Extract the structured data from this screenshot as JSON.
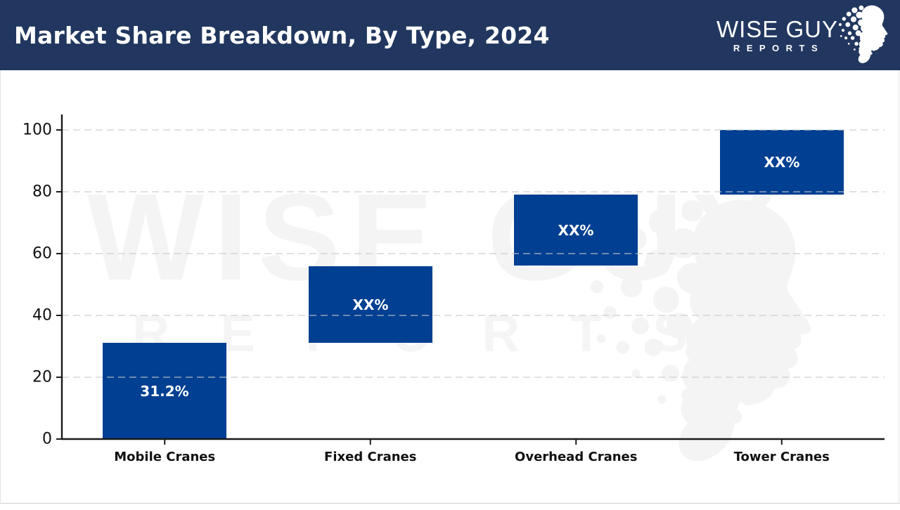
{
  "header": {
    "title": "Market Share Breakdown, By Type, 2024",
    "logo": {
      "name": "WISE GUY",
      "sub": "REPORTS"
    }
  },
  "watermark": {
    "name": "WISE GUY",
    "sub": "REPORTS"
  },
  "chart_data": {
    "type": "bar",
    "subtype": "waterfall",
    "title": "Market Share Breakdown, By Type, 2024",
    "xlabel": "",
    "ylabel": "",
    "categories": [
      "Mobile Cranes",
      "Fixed Cranes",
      "Overhead Cranes",
      "Tower Cranes"
    ],
    "segments": [
      {
        "category": "Mobile Cranes",
        "start": 0,
        "end": 31.2,
        "value_label": "31.2%"
      },
      {
        "category": "Fixed Cranes",
        "start": 31.2,
        "end": 56,
        "value_label": "XX%"
      },
      {
        "category": "Overhead Cranes",
        "start": 56,
        "end": 79,
        "value_label": "XX%"
      },
      {
        "category": "Tower Cranes",
        "start": 79,
        "end": 100,
        "value_label": "XX%"
      }
    ],
    "ylim": [
      0,
      100
    ],
    "yticks": [
      0,
      20,
      40,
      60,
      80,
      100
    ],
    "grid": "horizontal-dashed",
    "legend": "none",
    "bar_color": "#003f92",
    "label_color": "#ffffff",
    "axis_color": "#1a1a1a",
    "grid_color": "#c8c8c8",
    "header_bg": "#21375f"
  }
}
